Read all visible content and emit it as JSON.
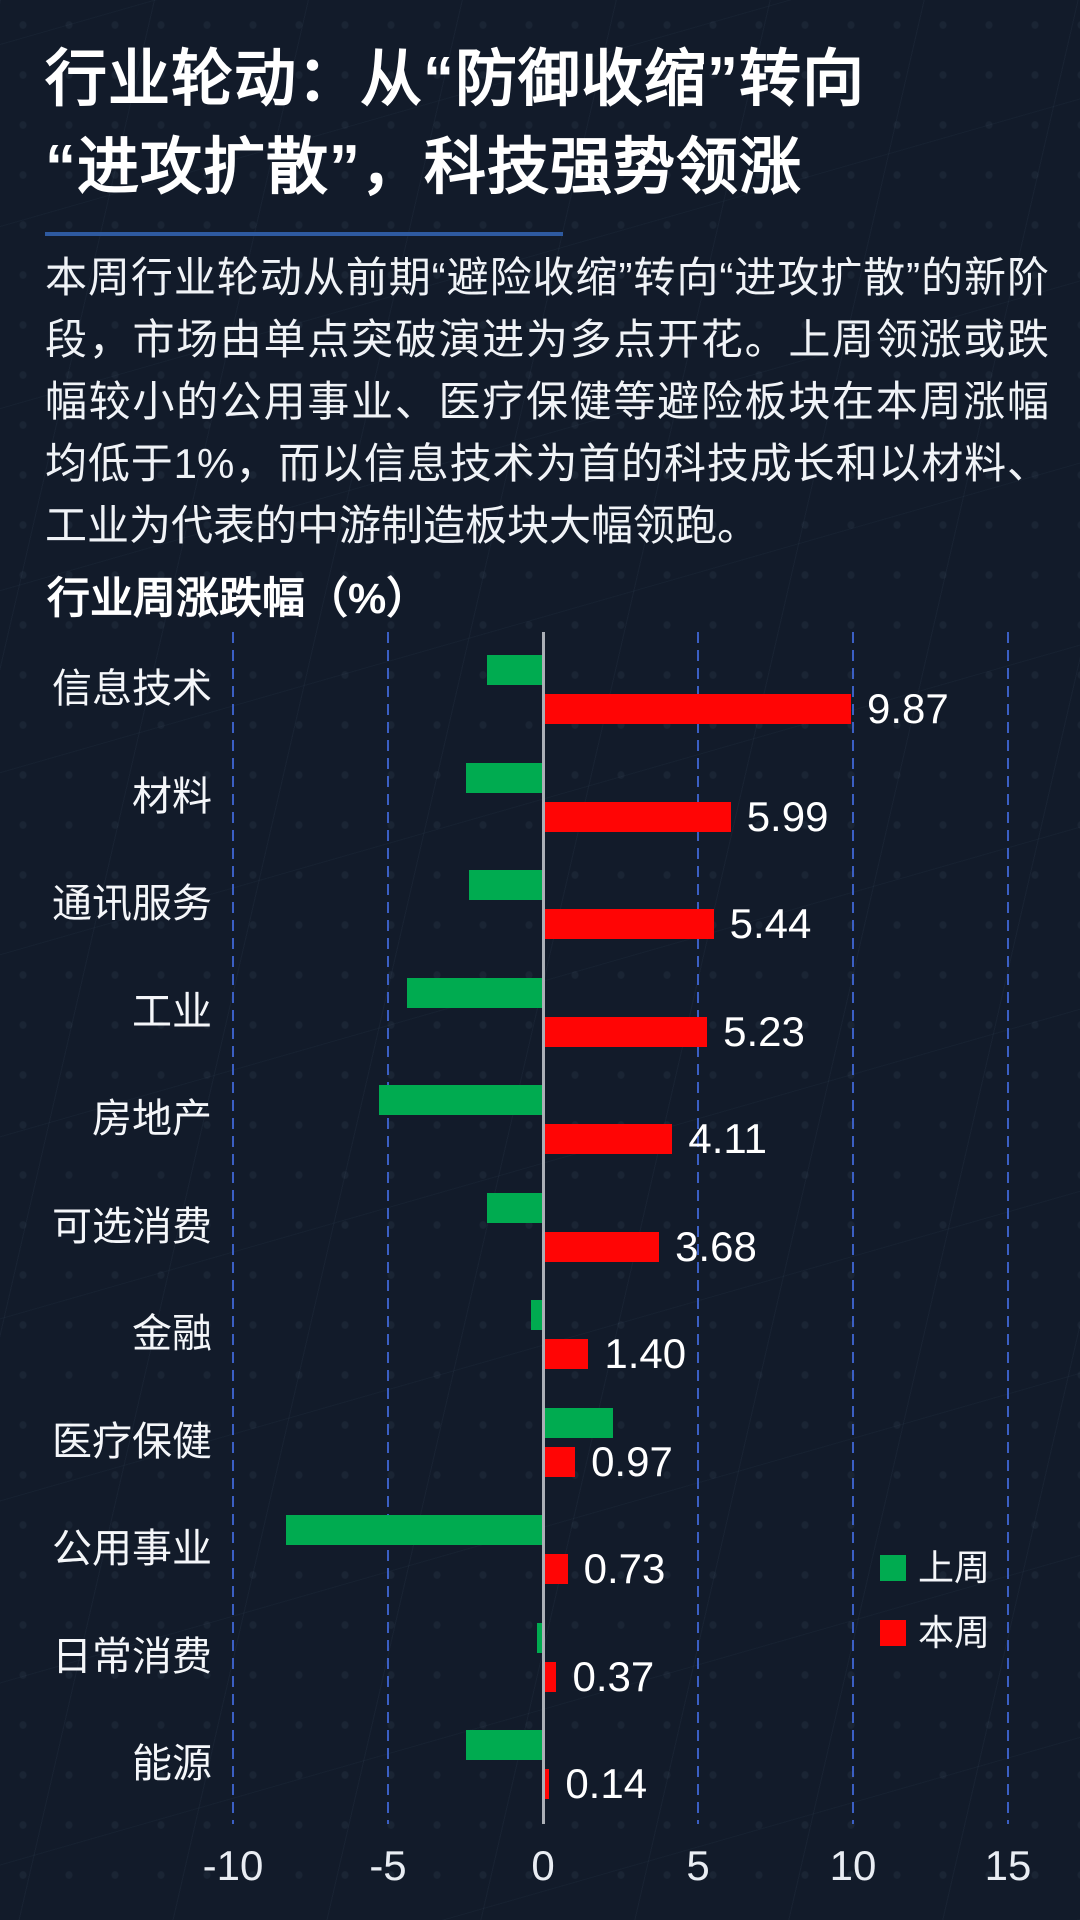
{
  "poster": {
    "title_line1": "行业轮动：从“防御收缩”转向",
    "title_line2": "“进攻扩散”，科技强势领涨",
    "paragraph": "本周行业轮动从前期“避险收缩”转向“进攻扩散”的新阶段，市场由单点突破演进为多点开花。上周领涨或跌幅较小的公用事业、医疗保健等避险板块在本周涨幅均低于1%，而以信息技术为首的科技成长和以材料、工业为代表的中游制造板块大幅领跑。"
  },
  "chart_data": {
    "type": "bar",
    "orientation": "horizontal",
    "title": "行业周涨跌幅（%）",
    "categories": [
      "信息技术",
      "材料",
      "通讯服务",
      "工业",
      "房地产",
      "可选消费",
      "金融",
      "医疗保健",
      "公用事业",
      "日常消费",
      "能源"
    ],
    "series": [
      {
        "name": "上周",
        "color": "#00AB50",
        "values": [
          -1.8,
          -2.5,
          -2.4,
          -4.4,
          -5.3,
          -1.8,
          -0.4,
          2.2,
          -8.3,
          -0.2,
          -2.5
        ]
      },
      {
        "name": "本周",
        "color": "#FF0505",
        "values": [
          9.87,
          5.99,
          5.44,
          5.23,
          4.11,
          3.68,
          1.4,
          0.97,
          0.73,
          0.37,
          0.14
        ]
      }
    ],
    "value_labels": [
      "9.87",
      "5.99",
      "5.44",
      "5.23",
      "4.11",
      "3.68",
      "1.40",
      "0.97",
      "0.73",
      "0.37",
      "0.14"
    ],
    "x_ticks": [
      "-10",
      "-5",
      "0",
      "5",
      "10",
      "15"
    ],
    "x_tick_values": [
      -10,
      -5,
      0,
      5,
      10,
      15
    ],
    "xlim": [
      -11.5,
      17
    ],
    "grid": "vertical-dashed",
    "legend_position": "inside-lower-right",
    "colors": {
      "grid": "#3B5FC4",
      "zero_line": "#ABAFB6",
      "background": "#121B2A",
      "text": "#FFFFFF",
      "accent_underline": "#2E5AA0"
    }
  },
  "legend": {
    "items": [
      {
        "label": "上周",
        "color": "#00AB50"
      },
      {
        "label": "本周",
        "color": "#FF0505"
      }
    ]
  }
}
